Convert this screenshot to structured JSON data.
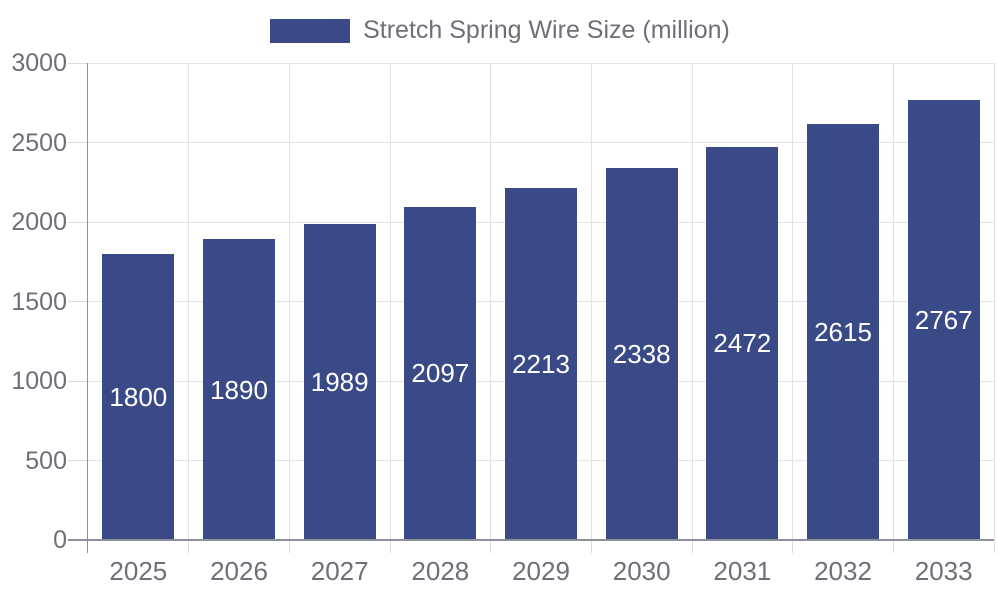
{
  "chart_data": {
    "type": "bar",
    "title": "",
    "series_name": "Stretch Spring Wire Size (million)",
    "categories": [
      "2025",
      "2026",
      "2027",
      "2028",
      "2029",
      "2030",
      "2031",
      "2032",
      "2033"
    ],
    "values": [
      1800,
      1890,
      1989,
      2097,
      2213,
      2338,
      2472,
      2615,
      2767
    ],
    "xlabel": "",
    "ylabel": "",
    "ylim": [
      0,
      3000
    ],
    "yticks": [
      0,
      500,
      1000,
      1500,
      2000,
      2500,
      3000
    ],
    "grid": true,
    "legend_position": "top-center",
    "value_label_position": "inside-middle",
    "colors": {
      "bar": "#394A87",
      "value_label": "#FFFFFF",
      "axis_label": "#6E7079",
      "legend_text": "#6E7079",
      "grid_line": "#E0E2E8",
      "tick_line": "#D9DBE0",
      "axis_line": "#8D9098",
      "background": "#FFFFFF"
    }
  }
}
